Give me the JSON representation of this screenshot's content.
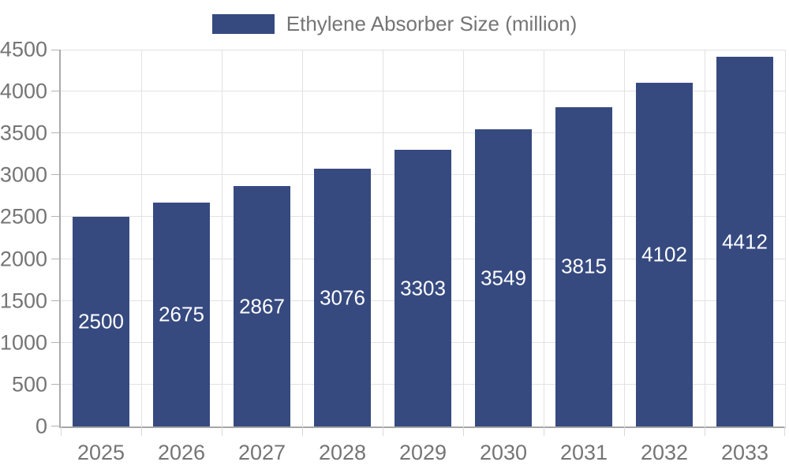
{
  "chart_data": {
    "type": "bar",
    "title": "Ethylene Absorber Size (million)",
    "legend": [
      "Ethylene Absorber Size (million)"
    ],
    "legend_position": "top",
    "categories": [
      "2025",
      "2026",
      "2027",
      "2028",
      "2029",
      "2030",
      "2031",
      "2032",
      "2033"
    ],
    "values": [
      2500,
      2675,
      2867,
      3076,
      3303,
      3549,
      3815,
      4102,
      4412
    ],
    "bar_labels": [
      "2500",
      "2675",
      "2867",
      "3076",
      "3303",
      "3549",
      "3815",
      "4102",
      "4412"
    ],
    "xlabel": "",
    "ylabel": "",
    "ylim": [
      0,
      4500
    ],
    "yticks": [
      0,
      500,
      1000,
      1500,
      2000,
      2500,
      3000,
      3500,
      4000,
      4500
    ],
    "grid": true,
    "colors": {
      "bar": "#364a80",
      "bar_label": "#ffffff",
      "axis_text": "#757575",
      "grid_line": "#e2e2e2",
      "y_axis_line": "#aaaaaa",
      "x_axis_line": "#a6a6a6",
      "y_tick": "#b3b3b3",
      "x_tick": "#d9d9d9"
    }
  }
}
